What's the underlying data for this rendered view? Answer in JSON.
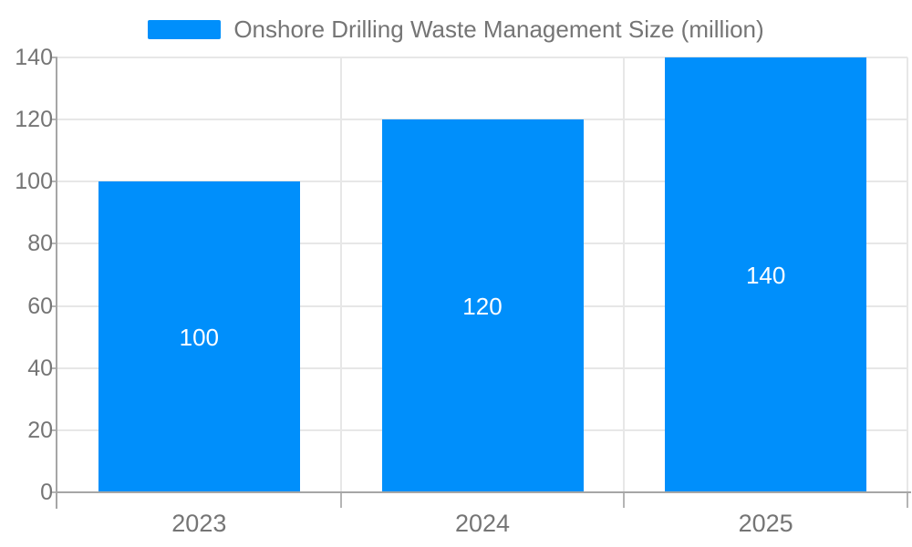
{
  "legend": {
    "label": "Onshore Drilling Waste Management Size (million)"
  },
  "chart_data": {
    "type": "bar",
    "title": "Onshore Drilling Waste Management Size (million)",
    "categories": [
      "2023",
      "2024",
      "2025"
    ],
    "series": [
      {
        "name": "Onshore Drilling Waste Management Size (million)",
        "values": [
          100,
          120,
          140
        ]
      }
    ],
    "data_labels": [
      "100",
      "120",
      "140"
    ],
    "yticks": [
      0,
      20,
      40,
      60,
      80,
      100,
      120,
      140
    ],
    "ylim": [
      0,
      140
    ],
    "xlabel": "",
    "ylabel": "",
    "grid": true,
    "legend_position": "top",
    "colors": {
      "bar": "#008FFB",
      "axis_text": "#757575",
      "data_label_text": "#FFFFFF",
      "gridline": "#E7E7E7",
      "axis_line": "#A6A6A6",
      "tick": "#B5B5B5",
      "background": "#FFFFFF"
    }
  }
}
